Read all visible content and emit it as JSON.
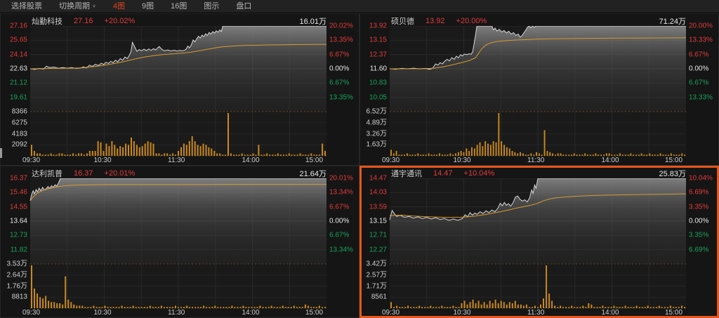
{
  "menu": {
    "items": [
      {
        "label": "选择股票",
        "active": false,
        "dropdown": false
      },
      {
        "label": "切换周期",
        "active": false,
        "dropdown": true
      },
      {
        "label": "4图",
        "active": true,
        "dropdown": false
      },
      {
        "label": "9图",
        "active": false,
        "dropdown": false
      },
      {
        "label": "16图",
        "active": false,
        "dropdown": false
      },
      {
        "label": "图示",
        "active": false,
        "dropdown": false
      },
      {
        "label": "盘口",
        "active": false,
        "dropdown": false
      }
    ]
  },
  "colors": {
    "up_red": "#e23b3b",
    "down_green": "#17a35b",
    "flat_white": "#e8e8e8",
    "active_menu": "#e0431f",
    "selected_border": "#e4571c",
    "avg_line": "#d79b32",
    "price_line": "#d8d8d8",
    "volume_bar": "#c9891f"
  },
  "time_labels": [
    "09:30",
    "10:30",
    "11:30",
    "14:00",
    "15:00"
  ],
  "chart_data": [
    {
      "type": "line",
      "name": "灿勤科技",
      "price": "27.16",
      "change": "+20.02%",
      "turnover": "16.01万",
      "selected": false,
      "limit_pct": 20.02,
      "y_left": [
        "27.16",
        "25.65",
        "24.14",
        "22.63",
        "21.12",
        "19.61"
      ],
      "y_right": [
        "20.02%",
        "13.35%",
        "6.67%",
        "0.00%",
        "6.67%",
        "13.35%"
      ],
      "axis_cls": [
        "up",
        "up",
        "up",
        "flat",
        "down",
        "down"
      ],
      "vol_labels": [
        "8366",
        "6275",
        "4183",
        "2092"
      ],
      "price_line": [
        [
          0,
          0.1
        ],
        [
          1.5,
          -0.3
        ],
        [
          3,
          0.2
        ],
        [
          4.5,
          -0.1
        ],
        [
          5.5,
          1.2
        ],
        [
          6.5,
          0.6
        ],
        [
          8,
          0.8
        ],
        [
          9.5,
          0.3
        ],
        [
          11,
          0.6
        ],
        [
          12.5,
          0.3
        ],
        [
          14,
          0.6
        ],
        [
          15.5,
          0.2
        ],
        [
          17,
          0.4
        ],
        [
          18,
          0.9
        ],
        [
          19,
          0.4
        ],
        [
          20,
          1.7
        ],
        [
          21,
          1.1
        ],
        [
          22,
          2.1
        ],
        [
          23,
          1.5
        ],
        [
          24,
          2.6
        ],
        [
          24.8,
          2.0
        ],
        [
          25.6,
          3.1
        ],
        [
          26.4,
          2.5
        ],
        [
          27.2,
          3.5
        ],
        [
          28,
          2.9
        ],
        [
          28.8,
          4.0
        ],
        [
          29.6,
          3.3
        ],
        [
          30.4,
          4.8
        ],
        [
          31.2,
          4.0
        ],
        [
          32,
          5.5
        ],
        [
          32.8,
          4.8
        ],
        [
          33.4,
          6.1
        ],
        [
          34,
          8.0
        ],
        [
          34.5,
          12.4
        ],
        [
          35.2,
          10.5
        ],
        [
          36,
          8.2
        ],
        [
          36.8,
          9.0
        ],
        [
          37.6,
          8.4
        ],
        [
          38.4,
          9.2
        ],
        [
          39.2,
          8.5
        ],
        [
          40,
          9.3
        ],
        [
          40.8,
          8.6
        ],
        [
          41.6,
          9.4
        ],
        [
          42.4,
          8.8
        ],
        [
          43,
          9.8
        ],
        [
          43.6,
          10.4
        ],
        [
          44.2,
          9.4
        ],
        [
          44.8,
          8.8
        ],
        [
          45.4,
          8.4
        ],
        [
          46.5,
          8.8
        ],
        [
          47.5,
          8.3
        ],
        [
          48.5,
          8.7
        ],
        [
          49.5,
          8.3
        ],
        [
          50.5,
          8.6
        ],
        [
          51.5,
          8.4
        ],
        [
          52.5,
          9.0
        ],
        [
          53.2,
          10.6
        ],
        [
          53.8,
          9.8
        ],
        [
          54.4,
          11.3
        ],
        [
          55,
          13.5
        ],
        [
          55.6,
          12.6
        ],
        [
          56.2,
          14.0
        ],
        [
          56.8,
          15.2
        ],
        [
          57.4,
          14.4
        ],
        [
          58,
          15.8
        ],
        [
          58.6,
          15.0
        ],
        [
          59.2,
          16.4
        ],
        [
          59.8,
          15.6
        ],
        [
          60.4,
          17.0
        ],
        [
          61,
          16.2
        ],
        [
          61.6,
          17.4
        ],
        [
          62.2,
          16.7
        ],
        [
          62.8,
          17.8
        ],
        [
          63.4,
          17.1
        ],
        [
          64,
          18.2
        ],
        [
          64.5,
          17.4
        ],
        [
          65,
          20.02
        ],
        [
          100,
          20.02
        ]
      ],
      "avg_line": [
        [
          0,
          0
        ],
        [
          8,
          0.2
        ],
        [
          14,
          0.3
        ],
        [
          18,
          0.5
        ],
        [
          22,
          1.1
        ],
        [
          26,
          1.9
        ],
        [
          30,
          2.9
        ],
        [
          33,
          3.8
        ],
        [
          36,
          4.8
        ],
        [
          39,
          5.6
        ],
        [
          42,
          6.2
        ],
        [
          45,
          6.7
        ],
        [
          48,
          7.0
        ],
        [
          51,
          7.3
        ],
        [
          54,
          7.7
        ],
        [
          57,
          8.4
        ],
        [
          60,
          9.2
        ],
        [
          63,
          9.9
        ],
        [
          65,
          10.3
        ],
        [
          68,
          10.6
        ],
        [
          72,
          10.9
        ],
        [
          78,
          11.1
        ],
        [
          85,
          11.25
        ],
        [
          92,
          11.35
        ],
        [
          100,
          11.45
        ]
      ],
      "volume_bars_b36": "942211121122111212212444cb4a8c9687a9fc978acba2212212147a9cgc98a97642211z211121112191121112111211121112111a4"
    },
    {
      "type": "line",
      "name": "硕贝德",
      "price": "13.92",
      "change": "+20.00%",
      "turnover": "71.24万",
      "selected": false,
      "limit_pct": 20.0,
      "y_left": [
        "13.92",
        "13.15",
        "12.37",
        "11.60",
        "10.83",
        "10.05"
      ],
      "y_right": [
        "20.00%",
        "13.33%",
        "6.67%",
        "0.00%",
        "6.67%",
        "13.33%"
      ],
      "axis_cls": [
        "up",
        "up",
        "up",
        "flat",
        "down",
        "down"
      ],
      "vol_labels": [
        "6.52万",
        "4.89万",
        "3.26万",
        "1.63万"
      ],
      "price_line": [
        [
          0,
          0.1
        ],
        [
          2,
          -0.2
        ],
        [
          4,
          0.2
        ],
        [
          6,
          0
        ],
        [
          8,
          0.3
        ],
        [
          10,
          0
        ],
        [
          12,
          0.2
        ],
        [
          13.5,
          -0.3
        ],
        [
          14.5,
          0.3
        ],
        [
          15.5,
          2.3
        ],
        [
          16.3,
          1.7
        ],
        [
          17,
          2.9
        ],
        [
          17.8,
          2.3
        ],
        [
          18.6,
          3.6
        ],
        [
          19.4,
          4.4
        ],
        [
          20.2,
          3.7
        ],
        [
          21,
          5.2
        ],
        [
          21.8,
          4.4
        ],
        [
          22.5,
          5.9
        ],
        [
          23.2,
          5.1
        ],
        [
          23.9,
          6.6
        ],
        [
          24.5,
          6.0
        ],
        [
          25.2,
          6.9
        ],
        [
          26,
          6.6
        ],
        [
          26.8,
          7.0
        ],
        [
          27.5,
          6.8
        ],
        [
          28,
          8.0
        ],
        [
          28.5,
          12.0
        ],
        [
          29,
          16.0
        ],
        [
          29.4,
          20.0
        ],
        [
          34.5,
          20.0
        ],
        [
          35,
          18.2
        ],
        [
          35.6,
          19.0
        ],
        [
          36.2,
          17.6
        ],
        [
          37,
          18.4
        ],
        [
          37.8,
          17.2
        ],
        [
          38.6,
          17.9
        ],
        [
          39.4,
          16.8
        ],
        [
          40.2,
          17.5
        ],
        [
          41,
          16.2
        ],
        [
          41.8,
          16.9
        ],
        [
          42.6,
          15.6
        ],
        [
          43.4,
          16.2
        ],
        [
          44,
          14.8
        ],
        [
          44.6,
          15.4
        ],
        [
          45.2,
          16.6
        ],
        [
          45.8,
          17.8
        ],
        [
          46.4,
          19.2
        ],
        [
          47,
          20.0
        ],
        [
          47.6,
          19.2
        ],
        [
          48.2,
          20.0
        ],
        [
          48.8,
          19.4
        ],
        [
          49.4,
          20.0
        ],
        [
          100,
          20.0
        ]
      ],
      "avg_line": [
        [
          0,
          0
        ],
        [
          12,
          0.1
        ],
        [
          15,
          0.3
        ],
        [
          18,
          0.9
        ],
        [
          21,
          1.8
        ],
        [
          24,
          2.8
        ],
        [
          27,
          3.9
        ],
        [
          29,
          5.2
        ],
        [
          30,
          7.2
        ],
        [
          31,
          9.2
        ],
        [
          32,
          10.6
        ],
        [
          33,
          11.5
        ],
        [
          34,
          12.1
        ],
        [
          36,
          12.7
        ],
        [
          38,
          13.0
        ],
        [
          41,
          13.3
        ],
        [
          44,
          13.5
        ],
        [
          47,
          13.7
        ],
        [
          50,
          13.9
        ],
        [
          56,
          14.05
        ],
        [
          64,
          14.2
        ],
        [
          75,
          14.3
        ],
        [
          88,
          14.38
        ],
        [
          100,
          14.45
        ]
      ],
      "volume_bars_b36": "524111211121112111211121234364769b8ca9cbzc976432321121321l4321221111211121112111221112111211121121112111211121"
    },
    {
      "type": "line",
      "name": "达利凯普",
      "price": "16.37",
      "change": "+20.01%",
      "turnover": "21.64万",
      "selected": false,
      "limit_pct": 20.01,
      "y_left": [
        "16.37",
        "15.46",
        "14.55",
        "13.64",
        "12.73",
        "11.82"
      ],
      "y_right": [
        "20.01%",
        "13.34%",
        "6.67%",
        "0.00%",
        "6.67%",
        "13.34%"
      ],
      "axis_cls": [
        "up",
        "up",
        "up",
        "flat",
        "down",
        "down"
      ],
      "vol_labels": [
        "3.53万",
        "2.64万",
        "1.76万",
        "8813"
      ],
      "price_line": [
        [
          0,
          9.5
        ],
        [
          0.5,
          12.5
        ],
        [
          1,
          14.2
        ],
        [
          1.5,
          12.8
        ],
        [
          2,
          14.8
        ],
        [
          2.5,
          13.6
        ],
        [
          3,
          15.4
        ],
        [
          3.6,
          14.2
        ],
        [
          4.2,
          15.8
        ],
        [
          4.8,
          14.6
        ],
        [
          5.4,
          15.2
        ],
        [
          6,
          16.2
        ],
        [
          6.6,
          15.3
        ],
        [
          7.2,
          16.6
        ],
        [
          7.8,
          15.8
        ],
        [
          8.4,
          17.0
        ],
        [
          9,
          16.4
        ],
        [
          9.6,
          18.0
        ],
        [
          10.2,
          20.01
        ],
        [
          100,
          20.01
        ]
      ],
      "avg_line": [
        [
          0,
          9.5
        ],
        [
          1,
          11.3
        ],
        [
          2,
          12.6
        ],
        [
          3,
          13.5
        ],
        [
          4,
          14.2
        ],
        [
          5,
          14.7
        ],
        [
          6,
          15.1
        ],
        [
          7,
          15.45
        ],
        [
          8,
          15.75
        ],
        [
          9,
          16.0
        ],
        [
          10,
          16.25
        ],
        [
          12,
          16.55
        ],
        [
          14,
          16.75
        ],
        [
          17,
          16.9
        ],
        [
          20,
          17.0
        ],
        [
          30,
          17.1
        ],
        [
          100,
          17.2
        ]
      ],
      "volume_bars_b36": "zgc98a655443q75322211121112111112111211111211121111211121111121112111112111211111211121112111211132111211"
    },
    {
      "type": "line",
      "name": "通宇通讯",
      "price": "14.47",
      "change": "+10.04%",
      "turnover": "25.83万",
      "selected": true,
      "limit_pct": 10.04,
      "y_left": [
        "14.47",
        "14.03",
        "13.59",
        "13.15",
        "12.71",
        "12.27"
      ],
      "y_right": [
        "10.04%",
        "6.69%",
        "3.35%",
        "0.00%",
        "3.35%",
        "6.69%"
      ],
      "axis_cls": [
        "up",
        "up",
        "up",
        "flat",
        "down",
        "down"
      ],
      "vol_labels": [
        "3.42万",
        "2.57万",
        "1.71万",
        "8561"
      ],
      "price_line": [
        [
          0,
          0.3
        ],
        [
          0.8,
          2.5
        ],
        [
          1.6,
          1.7
        ],
        [
          2.4,
          1.1
        ],
        [
          3.5,
          1.4
        ],
        [
          5,
          0.9
        ],
        [
          6.5,
          1.1
        ],
        [
          8,
          0.7
        ],
        [
          9.5,
          1.0
        ],
        [
          11,
          0.6
        ],
        [
          12.5,
          0.9
        ],
        [
          14,
          0.5
        ],
        [
          15.5,
          0.8
        ],
        [
          17,
          0.4
        ],
        [
          18.5,
          0.6
        ],
        [
          20,
          0.2
        ],
        [
          21.5,
          0.5
        ],
        [
          23,
          0.2
        ],
        [
          24.5,
          0.6
        ],
        [
          25.5,
          1.5
        ],
        [
          26.3,
          1.0
        ],
        [
          27.1,
          2.0
        ],
        [
          27.9,
          1.4
        ],
        [
          28.7,
          1.9
        ],
        [
          29.5,
          1.6
        ],
        [
          30.5,
          2.2
        ],
        [
          31.5,
          1.8
        ],
        [
          32.5,
          2.4
        ],
        [
          33.5,
          2.0
        ],
        [
          34.5,
          2.6
        ],
        [
          35.5,
          2.2
        ],
        [
          36.5,
          3.0
        ],
        [
          37.3,
          4.2
        ],
        [
          38,
          3.6
        ],
        [
          38.7,
          4.4
        ],
        [
          39.4,
          3.7
        ],
        [
          40.1,
          4.1
        ],
        [
          40.8,
          3.5
        ],
        [
          41.6,
          4.3
        ],
        [
          42.4,
          5.6
        ],
        [
          43.2,
          5.9
        ],
        [
          44,
          5.1
        ],
        [
          44.8,
          4.7
        ],
        [
          45.6,
          5.0
        ],
        [
          46.4,
          4.5
        ],
        [
          47.2,
          5.4
        ],
        [
          47.9,
          7.3
        ],
        [
          48.4,
          6.5
        ],
        [
          48.9,
          8.5
        ],
        [
          49.4,
          7.7
        ],
        [
          50,
          10.04
        ],
        [
          100,
          10.04
        ]
      ],
      "avg_line": [
        [
          0,
          1.3
        ],
        [
          4,
          1.4
        ],
        [
          8,
          1.2
        ],
        [
          12,
          1.05
        ],
        [
          16,
          0.95
        ],
        [
          20,
          0.85
        ],
        [
          24,
          0.9
        ],
        [
          28,
          1.1
        ],
        [
          32,
          1.5
        ],
        [
          36,
          2.0
        ],
        [
          40,
          2.6
        ],
        [
          43,
          3.1
        ],
        [
          46,
          3.5
        ],
        [
          48,
          3.8
        ],
        [
          50,
          4.2
        ],
        [
          52,
          4.8
        ],
        [
          54,
          5.2
        ],
        [
          56,
          5.45
        ],
        [
          58,
          5.6
        ],
        [
          61,
          5.75
        ],
        [
          64,
          5.9
        ],
        [
          68,
          6.0
        ],
        [
          74,
          6.1
        ],
        [
          82,
          6.2
        ],
        [
          91,
          6.3
        ],
        [
          100,
          6.4
        ]
      ],
      "volume_bars_b36": "5121112111211121112111211463574635364746535463323112138zc621211121112143111211121112111211121112111211121"
    }
  ]
}
